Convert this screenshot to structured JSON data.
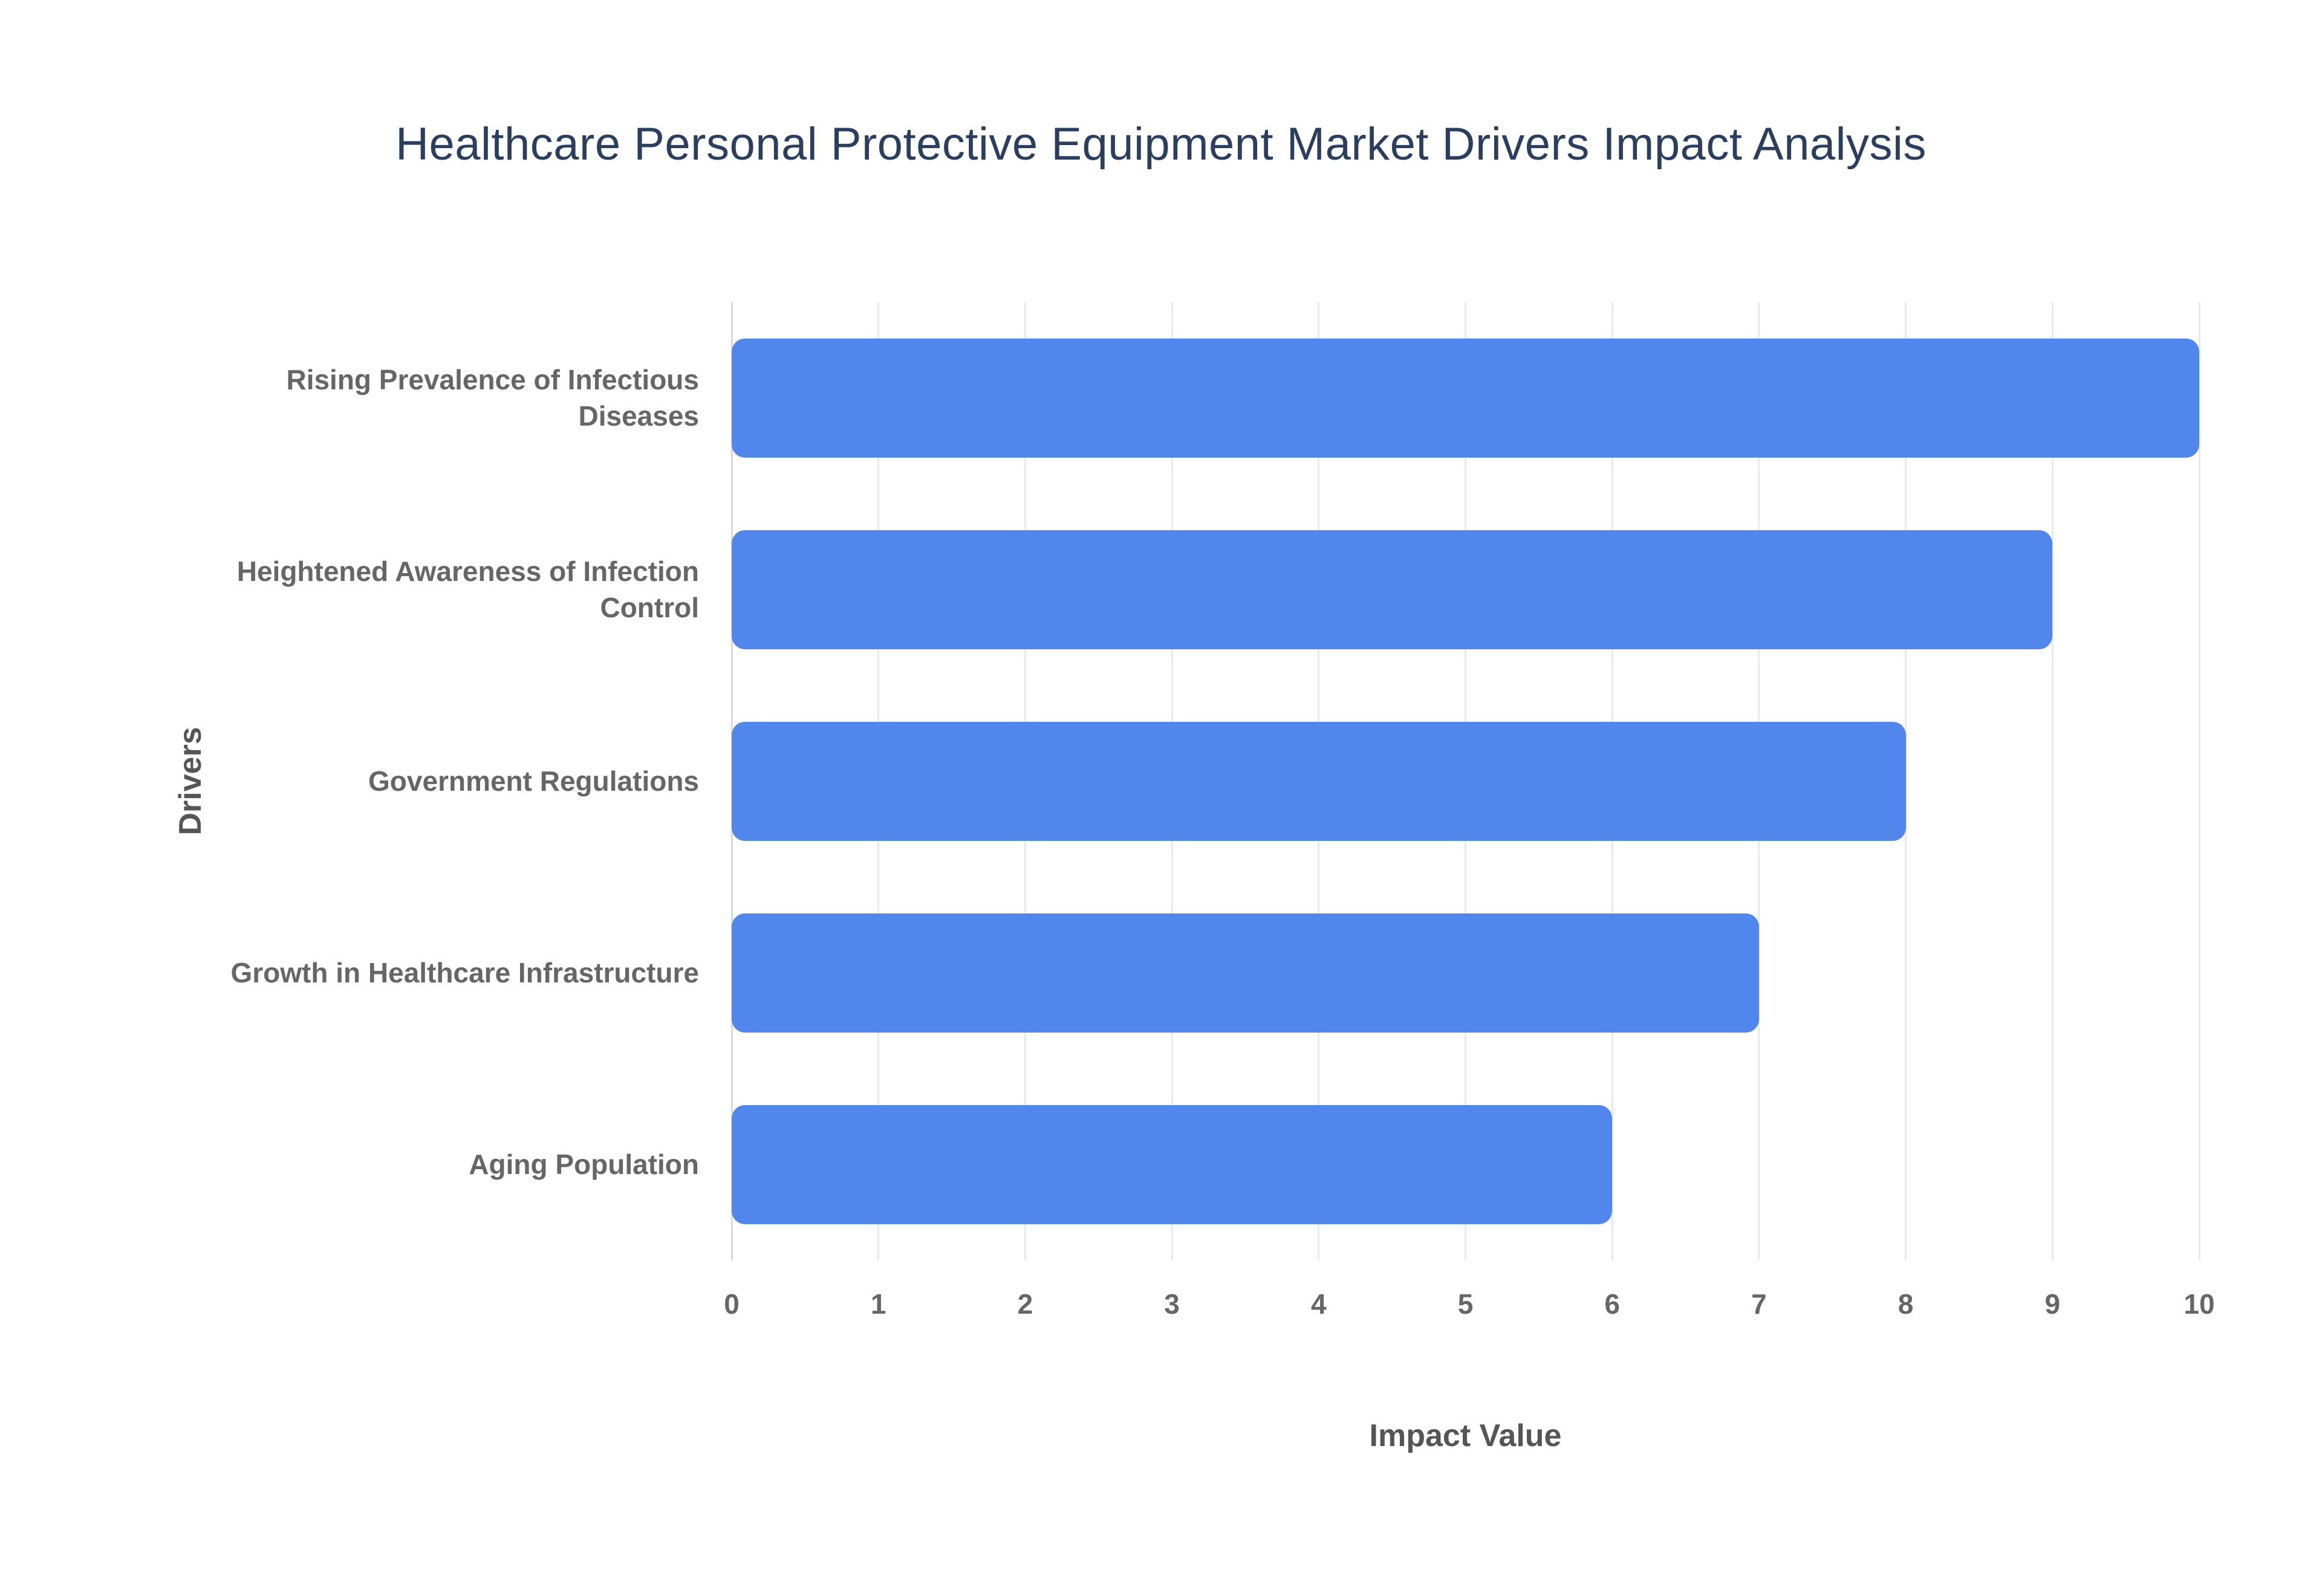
{
  "chart_data": {
    "type": "bar",
    "orientation": "horizontal",
    "title": "Healthcare Personal Protective Equipment Market Drivers Impact Analysis",
    "categories": [
      "Rising Prevalence of Infectious Diseases",
      "Heightened Awareness of Infection Control",
      "Government Regulations",
      "Growth in Healthcare Infrastructure",
      "Aging Population"
    ],
    "values": [
      10,
      9,
      8,
      7,
      6
    ],
    "xlabel": "Impact Value",
    "ylabel": "Drivers",
    "xlim": [
      0,
      10
    ],
    "xticks": [
      0,
      1,
      2,
      3,
      4,
      5,
      6,
      7,
      8,
      9,
      10
    ],
    "grid": true,
    "legend": "none",
    "bar_color": "#5187EC",
    "background_color": "#ffffff",
    "title_color": "#2a3f5f",
    "label_color": "#666666"
  }
}
